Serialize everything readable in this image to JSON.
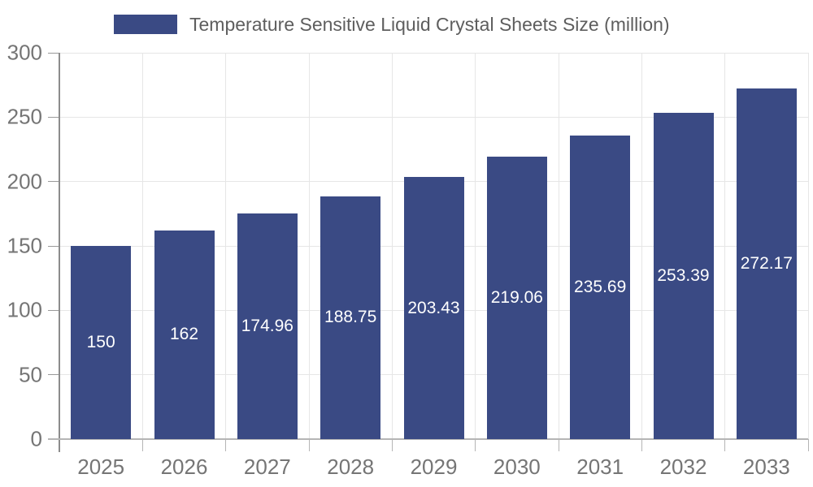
{
  "legend": {
    "label": "Temperature Sensitive Liquid Crystal Sheets Size (million)",
    "swatch_color": "#3A4A84"
  },
  "chart_data": {
    "type": "bar",
    "title": "Temperature Sensitive Liquid Crystal Sheets Size (million)",
    "categories": [
      "2025",
      "2026",
      "2027",
      "2028",
      "2029",
      "2030",
      "2031",
      "2032",
      "2033"
    ],
    "values": [
      150,
      162,
      174.96,
      188.75,
      203.43,
      219.06,
      235.69,
      253.39,
      272.17
    ],
    "value_labels": [
      "150",
      "162",
      "174.96",
      "188.75",
      "203.43",
      "219.06",
      "235.69",
      "253.39",
      "272.17"
    ],
    "xlabel": "",
    "ylabel": "",
    "ylim": [
      0,
      300
    ],
    "yticks": [
      0,
      50,
      100,
      150,
      200,
      250,
      300
    ],
    "grid": true,
    "legend_position": "top",
    "bar_color": "#3A4A84",
    "value_label_color": "#ffffff",
    "axis_label_color": "#757575",
    "legend_text_color": "#5e5e5e",
    "gridline_color": "#e6e6e6"
  }
}
